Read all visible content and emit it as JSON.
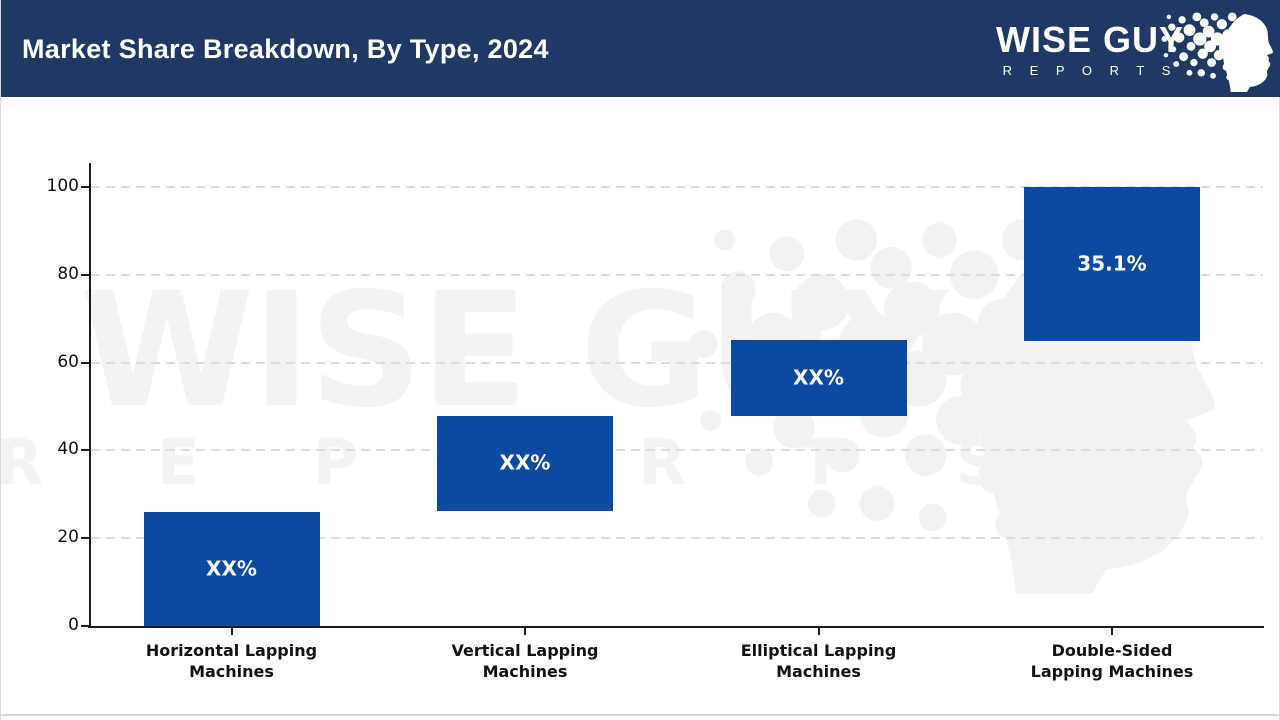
{
  "header": {
    "title": "Market Share Breakdown, By Type, 2024",
    "brand": {
      "line1": "WISE GUY",
      "line2": "R E P O R T S"
    }
  },
  "watermark": {
    "line1": "WISE GUY",
    "line2": "R E P O R T S"
  },
  "chart_data": {
    "type": "bar",
    "subtype": "floating-waterfall",
    "title": "Market Share Breakdown, By Type, 2024",
    "xlabel": "",
    "ylabel": "",
    "ylim": [
      0,
      105
    ],
    "yticks": [
      0,
      20,
      40,
      60,
      80,
      100
    ],
    "grid": "dashed-horizontal",
    "legend": false,
    "bar_color": "#0b4a9e",
    "categories": [
      "Horizontal Lapping\nMachines",
      "Vertical Lapping\nMachines",
      "Elliptical Lapping\nMachines",
      "Double-Sided\nLapping Machines"
    ],
    "bars": [
      {
        "base": 0,
        "top": 26.0,
        "label": "XX%"
      },
      {
        "base": 26.3,
        "top": 47.8,
        "label": "XX%"
      },
      {
        "base": 47.8,
        "top": 65.1,
        "label": "XX%"
      },
      {
        "base": 64.9,
        "top": 100.0,
        "label": "35.1%"
      }
    ]
  },
  "colors": {
    "header_bg": "#1f3864",
    "bar": "#0b4a9e",
    "grid": "#dcdcdc",
    "axis": "#1a1a1a",
    "watermark": "#f2f2f4"
  }
}
